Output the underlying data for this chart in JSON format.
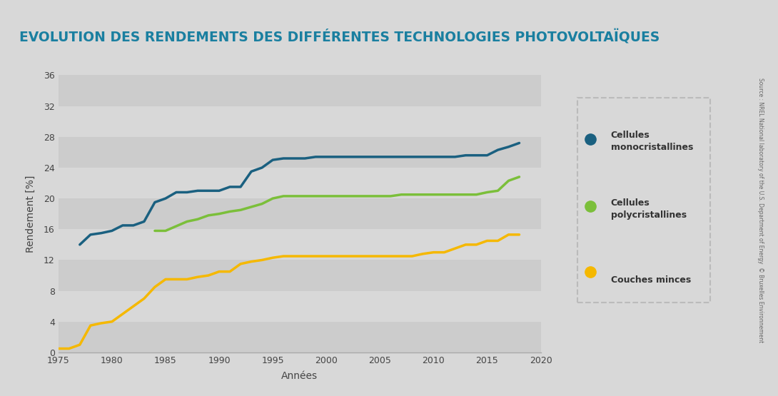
{
  "title": "EVOLUTION DES RENDEMENTS DES DIFFÉRENTES TECHNOLOGIES PHOTOVOLTAÏQUES",
  "title_color": "#1a7fa0",
  "title_bg": "#ffffff",
  "bg_color": "#d8d8d8",
  "plot_bg_light": "#d0d0d0",
  "plot_bg_dark": "#c0c0c0",
  "xlabel": "Années",
  "ylabel": "Rendement [%]",
  "xlim": [
    1975,
    2020
  ],
  "ylim": [
    0,
    36
  ],
  "yticks": [
    0,
    4,
    8,
    12,
    16,
    20,
    24,
    28,
    32,
    36
  ],
  "xticks": [
    1975,
    1980,
    1985,
    1990,
    1995,
    2000,
    2005,
    2010,
    2015,
    2020
  ],
  "source_text": "Source : NREL National laboratory of the U.S. Department of Energy  © Bruxelles Environnement",
  "mono_color": "#1a6080",
  "poly_color": "#7bbf3a",
  "thin_color": "#f5b800",
  "mono_x": [
    1977,
    1978,
    1979,
    1980,
    1981,
    1982,
    1983,
    1984,
    1985,
    1986,
    1987,
    1988,
    1989,
    1990,
    1991,
    1992,
    1993,
    1994,
    1995,
    1996,
    1997,
    1998,
    1999,
    2000,
    2001,
    2002,
    2003,
    2004,
    2005,
    2006,
    2007,
    2008,
    2009,
    2010,
    2011,
    2012,
    2013,
    2014,
    2015,
    2016,
    2017,
    2018
  ],
  "mono_y": [
    14.0,
    15.3,
    15.5,
    15.8,
    16.5,
    16.5,
    17.0,
    19.5,
    20.0,
    20.8,
    20.8,
    21.0,
    21.0,
    21.0,
    21.5,
    21.5,
    23.5,
    24.0,
    25.0,
    25.2,
    25.2,
    25.2,
    25.4,
    25.4,
    25.4,
    25.4,
    25.4,
    25.4,
    25.4,
    25.4,
    25.4,
    25.4,
    25.4,
    25.4,
    25.4,
    25.4,
    25.6,
    25.6,
    25.6,
    26.3,
    26.7,
    27.2
  ],
  "poly_x": [
    1984,
    1985,
    1986,
    1987,
    1988,
    1989,
    1990,
    1991,
    1992,
    1993,
    1994,
    1995,
    1996,
    1997,
    1998,
    1999,
    2000,
    2001,
    2002,
    2003,
    2004,
    2005,
    2006,
    2007,
    2008,
    2009,
    2010,
    2011,
    2012,
    2013,
    2014,
    2015,
    2016,
    2017,
    2018
  ],
  "poly_y": [
    15.8,
    15.8,
    16.4,
    17.0,
    17.3,
    17.8,
    18.0,
    18.3,
    18.5,
    18.9,
    19.3,
    20.0,
    20.3,
    20.3,
    20.3,
    20.3,
    20.3,
    20.3,
    20.3,
    20.3,
    20.3,
    20.3,
    20.3,
    20.5,
    20.5,
    20.5,
    20.5,
    20.5,
    20.5,
    20.5,
    20.5,
    20.8,
    21.0,
    22.3,
    22.8
  ],
  "thin_x": [
    1975,
    1976,
    1977,
    1978,
    1979,
    1980,
    1981,
    1982,
    1983,
    1984,
    1985,
    1986,
    1987,
    1988,
    1989,
    1990,
    1991,
    1992,
    1993,
    1994,
    1995,
    1996,
    1997,
    1998,
    1999,
    2000,
    2001,
    2002,
    2003,
    2004,
    2005,
    2006,
    2007,
    2008,
    2009,
    2010,
    2011,
    2012,
    2013,
    2014,
    2015,
    2016,
    2017,
    2018
  ],
  "thin_y": [
    0.5,
    0.5,
    1.0,
    3.5,
    3.8,
    4.0,
    5.0,
    6.0,
    7.0,
    8.5,
    9.5,
    9.5,
    9.5,
    9.8,
    10.0,
    10.5,
    10.5,
    11.5,
    11.8,
    12.0,
    12.3,
    12.5,
    12.5,
    12.5,
    12.5,
    12.5,
    12.5,
    12.5,
    12.5,
    12.5,
    12.5,
    12.5,
    12.5,
    12.5,
    12.8,
    13.0,
    13.0,
    13.5,
    14.0,
    14.0,
    14.5,
    14.5,
    15.3,
    15.3
  ],
  "line_width": 2.5,
  "legend_labels": [
    "Cellules\nmonocristallines",
    "Cellules\npolycristallines",
    "Couches minces"
  ]
}
